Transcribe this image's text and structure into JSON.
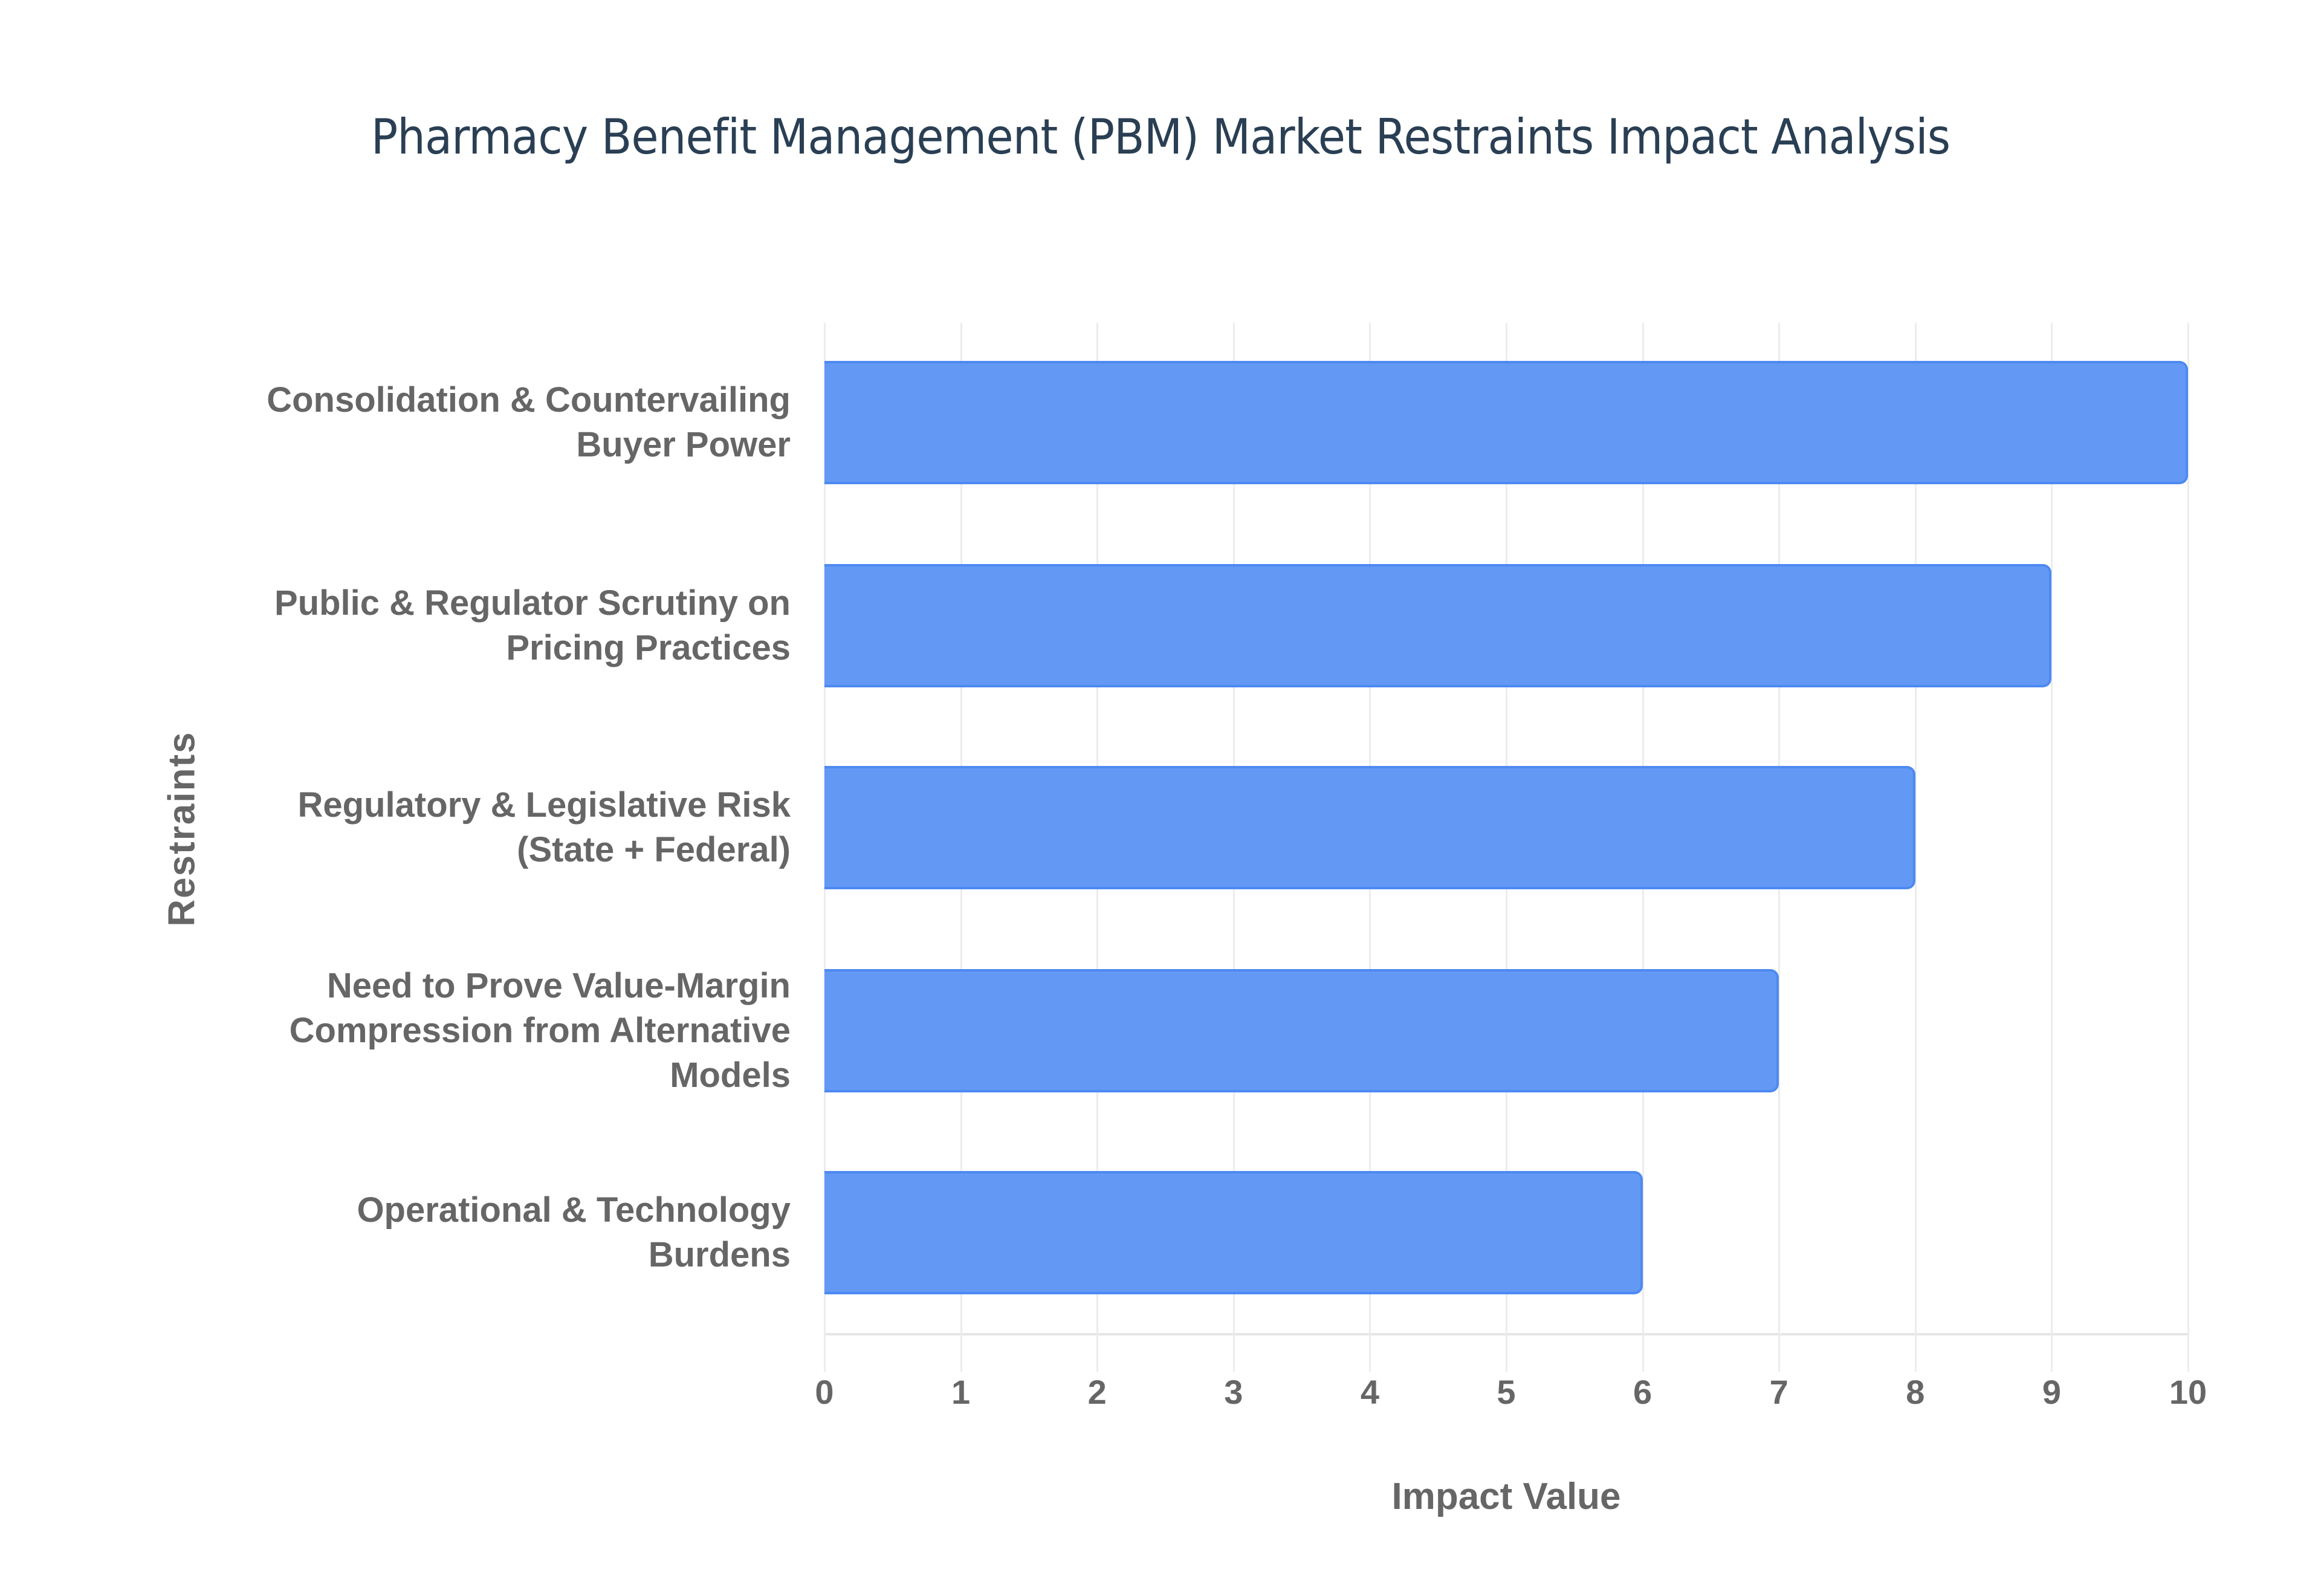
{
  "chart_data": {
    "type": "bar",
    "orientation": "horizontal",
    "title": "Pharmacy Benefit Management (PBM) Market Restraints Impact Analysis",
    "xlabel": "Impact Value",
    "ylabel": "Restraints",
    "xlim": [
      0,
      10
    ],
    "xticks": [
      "0",
      "1",
      "2",
      "3",
      "4",
      "5",
      "6",
      "7",
      "8",
      "9",
      "10"
    ],
    "grid": true,
    "bar_color": "#6399f5",
    "bar_border_color": "#4d89f2",
    "categories": [
      [
        "Consolidation & Countervailing",
        "Buyer Power"
      ],
      [
        "Public & Regulator Scrutiny on",
        "Pricing Practices"
      ],
      [
        "Regulatory & Legislative Risk",
        "(State + Federal)"
      ],
      [
        "Need to Prove Value-Margin",
        "Compression from Alternative",
        "Models"
      ],
      [
        "Operational & Technology",
        "Burdens"
      ]
    ],
    "values": [
      10,
      9,
      8,
      7,
      6
    ]
  }
}
